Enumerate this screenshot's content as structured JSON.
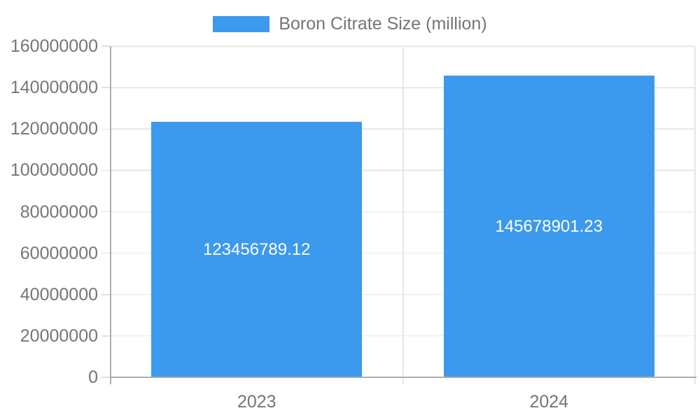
{
  "colors": {
    "bar_blue": "#3b99ee",
    "axis_line": "#adadad",
    "gridline": "#e6e6e6",
    "axis_text": "#757575",
    "bar_label_text": "#ffffff",
    "background": "#ffffff"
  },
  "legend": {
    "label": "Boron Citrate Size (million)"
  },
  "chart_data": {
    "type": "bar",
    "title": "",
    "categories": [
      "2023",
      "2024"
    ],
    "series": [
      {
        "name": "Boron Citrate Size (million)",
        "values": [
          123456789.12,
          145678901.23
        ],
        "value_labels": [
          "123456789.12",
          "145678901.23"
        ],
        "color": "#3b99ee"
      }
    ],
    "ylim": [
      0,
      160000000
    ],
    "ytick_step": 20000000,
    "ytick_values": [
      0,
      20000000,
      40000000,
      60000000,
      80000000,
      100000000,
      120000000,
      140000000,
      160000000
    ],
    "ytick_labels": [
      "0",
      "20000000",
      "40000000",
      "60000000",
      "80000000",
      "100000000",
      "120000000",
      "140000000",
      "160000000"
    ],
    "grid": true,
    "legend_position": "top-center",
    "bar_width_pct": 36,
    "value_label_position": "center-inside"
  }
}
